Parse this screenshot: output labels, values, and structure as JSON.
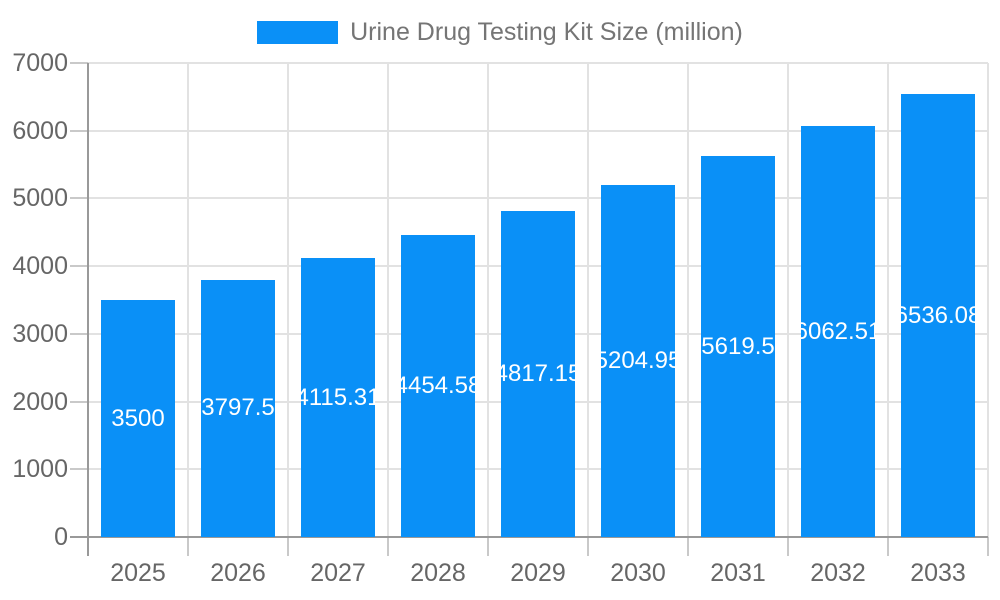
{
  "chart_data": {
    "type": "bar",
    "title": "",
    "legend": "Urine Drug Testing Kit Size (million)",
    "legend_position": "top-center",
    "categories": [
      "2025",
      "2026",
      "2027",
      "2028",
      "2029",
      "2030",
      "2031",
      "2032",
      "2033"
    ],
    "series": [
      {
        "name": "Urine Drug Testing Kit Size (million)",
        "values": [
          3500,
          3797.5,
          4115.31,
          4454.58,
          4817.15,
          5204.95,
          5619.5,
          6062.51,
          6536.08
        ]
      }
    ],
    "bar_labels": [
      "3500",
      "3797.5",
      "4115.31",
      "4454.58",
      "4817.15",
      "5204.95",
      "5619.5",
      "6062.51",
      "6536.08"
    ],
    "xlabel": "",
    "ylabel": "",
    "ylim": [
      0,
      7000
    ],
    "yticks": [
      0,
      1000,
      2000,
      3000,
      4000,
      5000,
      6000,
      7000
    ],
    "grid": "on",
    "colors": {
      "bar": "#0a90f7",
      "bar_label_text": "#ffffff",
      "gridline": "#e2e2e2",
      "axis_line": "#999999",
      "tick_mark": "#c9c9c9",
      "axis_label_text": "#666666",
      "legend_text": "#757575"
    }
  }
}
